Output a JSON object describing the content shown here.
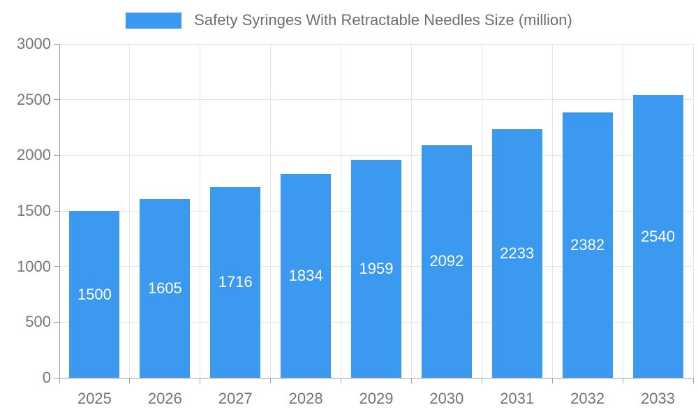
{
  "chart_data": {
    "type": "bar",
    "title": "Safety Syringes With Retractable Needles Size (million)",
    "categories": [
      "2025",
      "2026",
      "2027",
      "2028",
      "2029",
      "2030",
      "2031",
      "2032",
      "2033"
    ],
    "values": [
      1500,
      1605,
      1716,
      1834,
      1959,
      2092,
      2233,
      2382,
      2540
    ],
    "xlabel": "",
    "ylabel": "",
    "ylim": [
      0,
      3000
    ],
    "y_ticks": [
      0,
      500,
      1000,
      1500,
      2000,
      2500,
      3000
    ],
    "grid": true,
    "legend_position": "top-center",
    "value_labels": "inside-center",
    "colors": {
      "bar": "#3b99f0",
      "value_label": "#ffffff",
      "axis_label": "#757575",
      "grid_line": "#e5e5e5",
      "axis_line": "#a3a3a3",
      "background": "#ffffff"
    }
  }
}
